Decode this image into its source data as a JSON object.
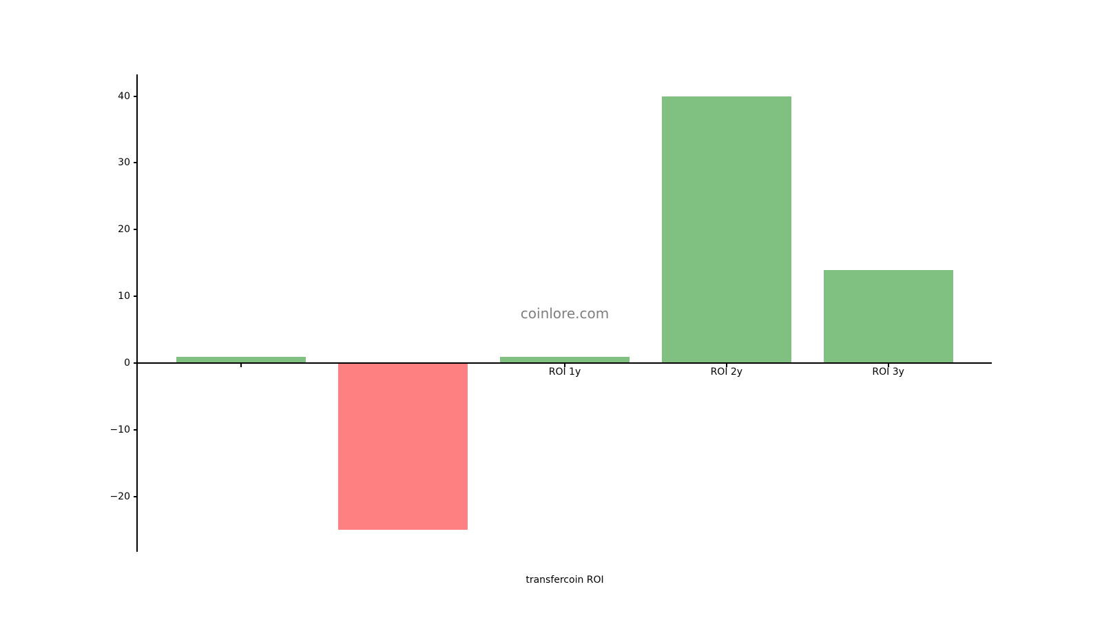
{
  "chart_data": {
    "type": "bar",
    "xlabel": "transfercoin ROI",
    "watermark": "coinlore.com",
    "categories": [
      "",
      "",
      "ROI 1y",
      "ROI 2y",
      "ROI 3y"
    ],
    "values": [
      1,
      -25,
      1,
      40,
      14
    ],
    "bar_colors": [
      "#80c080",
      "#ff8080",
      "#80c080",
      "#80c080",
      "#80c080"
    ],
    "positive_color": "#80c080",
    "negative_color": "#ff8080",
    "y_tick_values": [
      40,
      30,
      20,
      10,
      0,
      -10,
      -20
    ],
    "y_tick_labels": [
      "40",
      "30",
      "20",
      "10",
      "0",
      "−10",
      "−20"
    ],
    "ylim": [
      -28.25,
      43.25
    ],
    "xlim": [
      -0.64,
      4.64
    ],
    "bar_width": 0.8,
    "grid": false,
    "legend": "none",
    "axis_color": "#000000",
    "text_color": "#000000",
    "watermark_color": "#7f7f7f",
    "background_color": "#ffffff"
  }
}
